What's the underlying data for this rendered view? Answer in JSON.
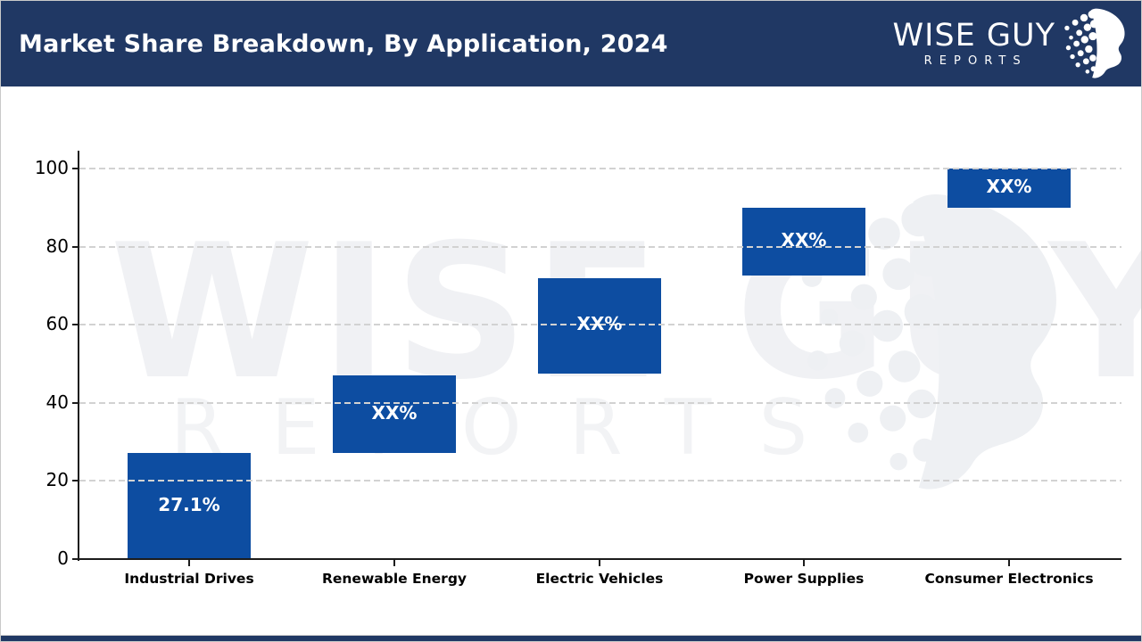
{
  "header": {
    "title": "Market Share Breakdown, By Application, 2024",
    "logo": {
      "line1": "WISE GUY",
      "line2": "REPORTS"
    }
  },
  "watermark": {
    "line1": "WISE GUY",
    "line2": "REPORTS"
  },
  "colors": {
    "header_bg": "#203864",
    "bar": "#0d4da1",
    "grid": "#d2d2d2",
    "axis": "#1c1c1c",
    "value_text": "#ffffff",
    "watermark_text": "#f0f1f4"
  },
  "chart_data": {
    "type": "bar",
    "subtype": "waterfall",
    "title": "Market Share Breakdown, By Application, 2024",
    "categories": [
      "Industrial Drives",
      "Renewable Energy",
      "Electric Vehicles",
      "Power Supplies",
      "Consumer Electronics"
    ],
    "segments": [
      {
        "category": "Industrial Drives",
        "start": 0,
        "end": 27.1,
        "label": "27.1%"
      },
      {
        "category": "Renewable Energy",
        "start": 27.1,
        "end": 47.1,
        "label": "XX%"
      },
      {
        "category": "Electric Vehicles",
        "start": 47.5,
        "end": 72,
        "label": "XX%"
      },
      {
        "category": "Power Supplies",
        "start": 72.5,
        "end": 90,
        "label": "XX%"
      },
      {
        "category": "Consumer Electronics",
        "start": 90,
        "end": 100,
        "label": "XX%"
      }
    ],
    "yticks": [
      0,
      20,
      40,
      60,
      80,
      100
    ],
    "ylim": [
      0,
      105
    ],
    "xlabel": "",
    "ylabel": "",
    "grid": "horizontal-dashed",
    "legend": false
  }
}
